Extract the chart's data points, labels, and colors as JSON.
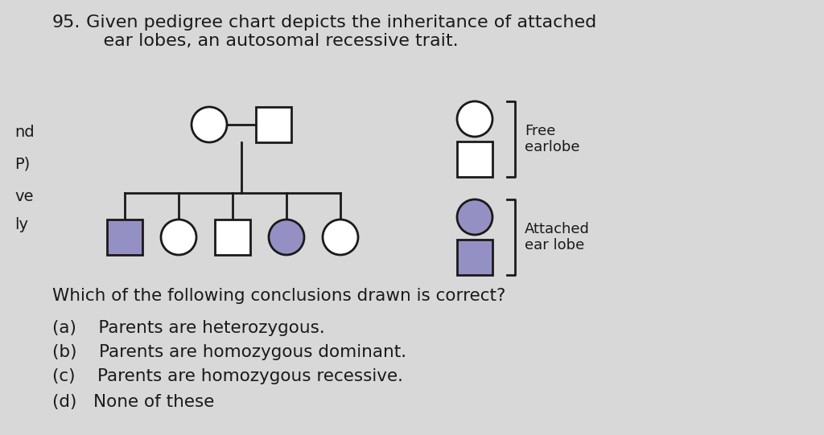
{
  "bg_color": "#d8d8d8",
  "title_num": "95.",
  "title_text": " Given pedigree chart depicts the inheritance of attached\n    ear lobes, an autosomal recessive trait.",
  "question_text": "Which of the following conclusions drawn is correct?",
  "options": [
    "(a)    Parents are heterozygous.",
    "(b)    Parents are homozygous dominant.",
    "(c)    Parents are homozygous recessive.",
    "(d)   None of these"
  ],
  "attached_color": "#9590c4",
  "free_color": "#ffffff",
  "line_color": "#1a1a1a",
  "text_color": "#1a1a1a",
  "legend_free_label": "Free\nearlobe",
  "legend_attached_label": "Attached\near lobe",
  "left_margin_texts": [
    "nd",
    "P)",
    "ve",
    "ly"
  ],
  "title_fontsize": 16,
  "body_fontsize": 15.5,
  "option_fontsize": 15.5,
  "legend_fontsize": 13
}
